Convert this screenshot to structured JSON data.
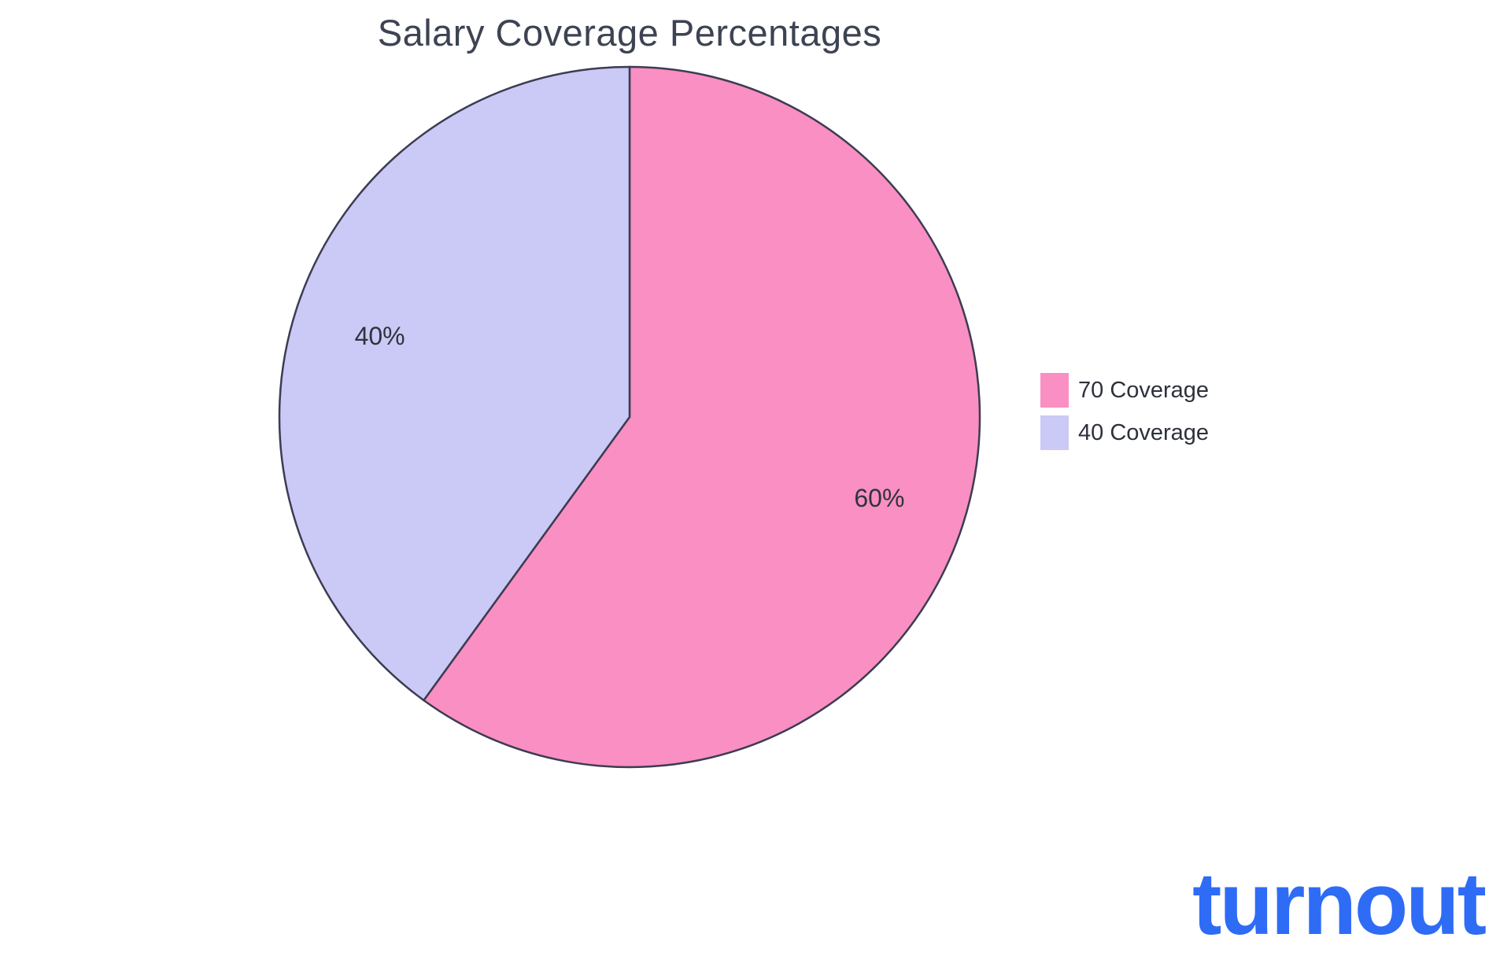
{
  "chart_data": {
    "type": "pie",
    "title": "Salary Coverage Percentages",
    "legend_position": "right",
    "stroke_color": "#3c3c52",
    "slices": [
      {
        "label": "70 Coverage",
        "value": 60,
        "display": "60%",
        "color": "#f98fc2"
      },
      {
        "label": "40 Coverage",
        "value": 40,
        "display": "40%",
        "color": "#cbc9f5"
      }
    ]
  },
  "branding": {
    "logo_text": "turnout",
    "logo_color": "#2e6cf6"
  }
}
